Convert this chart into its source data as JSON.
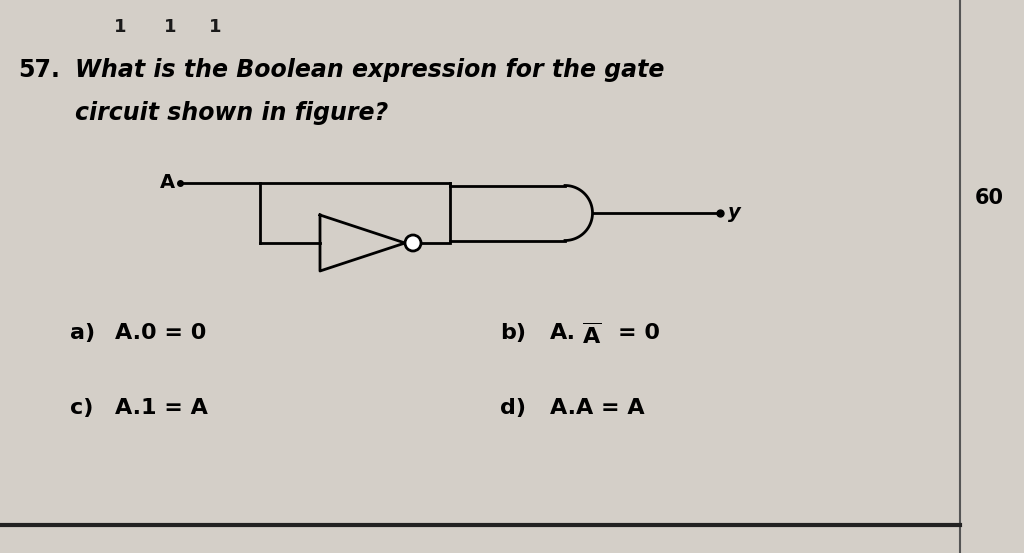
{
  "bg_color": "#d4cfc8",
  "question_number": "57.",
  "question_line1": "What is the Boolean expression for the gate",
  "question_line2": "circuit shown in figure?",
  "top_numbers": "1   1   1",
  "side_number": "60",
  "option_a": "A.0 = 0",
  "option_b_parts": [
    "A.",
    "A",
    "= 0"
  ],
  "option_c": "A.1 = A",
  "option_d": "A.A = A",
  "text_color": "#1a1a1a",
  "bold_color": "#000000"
}
